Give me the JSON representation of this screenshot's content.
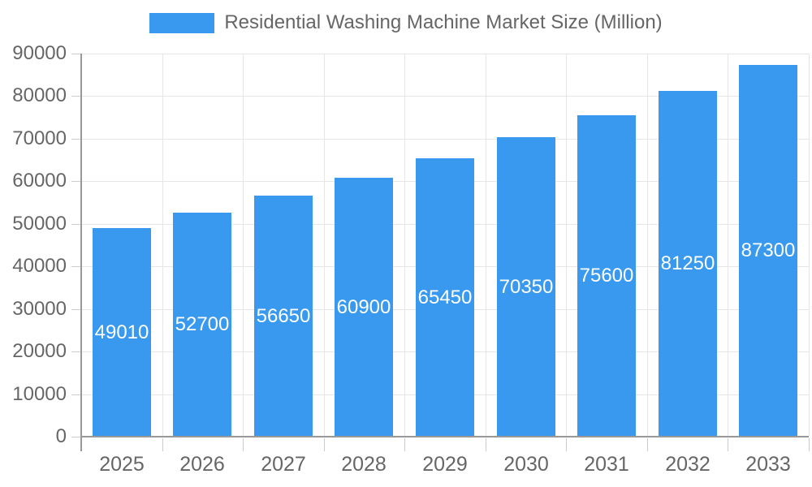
{
  "chart_data": {
    "type": "bar",
    "title": "Residential Washing Machine Market Size (Million)",
    "legend_position": "top",
    "categories": [
      "2025",
      "2026",
      "2027",
      "2028",
      "2029",
      "2030",
      "2031",
      "2032",
      "2033"
    ],
    "values": [
      49010,
      52700,
      56650,
      60900,
      65450,
      70350,
      75600,
      81250,
      87300
    ],
    "xlabel": "",
    "ylabel": "",
    "ylim": [
      0,
      90000
    ],
    "ytick_step": 10000,
    "ytick_labels": [
      "0",
      "10000",
      "20000",
      "30000",
      "40000",
      "50000",
      "60000",
      "70000",
      "80000",
      "90000"
    ],
    "grid": true,
    "value_labels": "centered-white-inside-bars",
    "colors": {
      "bar": "#3999ee",
      "axis": "#999999",
      "gridline": "#e6e6e6",
      "tick": "#cccccc",
      "axis_text": "#666666",
      "value_text": "#ffffff",
      "background": "#ffffff"
    }
  }
}
